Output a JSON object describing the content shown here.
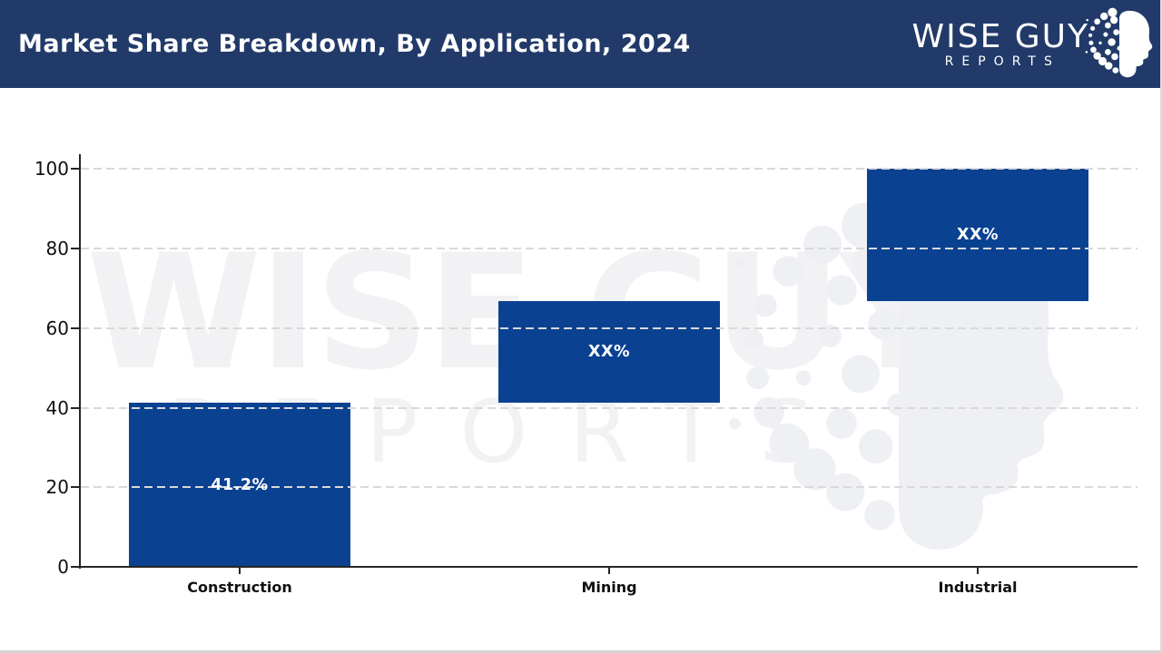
{
  "header": {
    "title": "Market Share Breakdown, By Application, 2024",
    "logo": {
      "name": "WISE GUY",
      "sub": "REPORTS"
    }
  },
  "watermark": {
    "line1": "WISE GUY",
    "line2": "REPORTS"
  },
  "colors": {
    "header_bg": "#213a69",
    "bar": "#0a4191",
    "grid": "#d9d9d9",
    "axis": "#262626",
    "bar_label": "#ffffff",
    "watermark": "#f2f2f5"
  },
  "chart_data": {
    "type": "bar",
    "variant": "waterfall",
    "title": "Market Share Breakdown, By Application, 2024",
    "categories": [
      "Construction",
      "Mining",
      "Industrial"
    ],
    "segments": [
      {
        "category": "Construction",
        "start": 0,
        "end": 41.2,
        "label": "41.2%"
      },
      {
        "category": "Mining",
        "start": 41.2,
        "end": 66.7,
        "label": "XX%"
      },
      {
        "category": "Industrial",
        "start": 66.7,
        "end": 100,
        "label": "XX%"
      }
    ],
    "yticks": [
      0,
      20,
      40,
      60,
      80,
      100
    ],
    "ylim": [
      0,
      104
    ],
    "xlabel": "",
    "ylabel": "",
    "grid": "horizontal-dashed",
    "legend": "none"
  }
}
